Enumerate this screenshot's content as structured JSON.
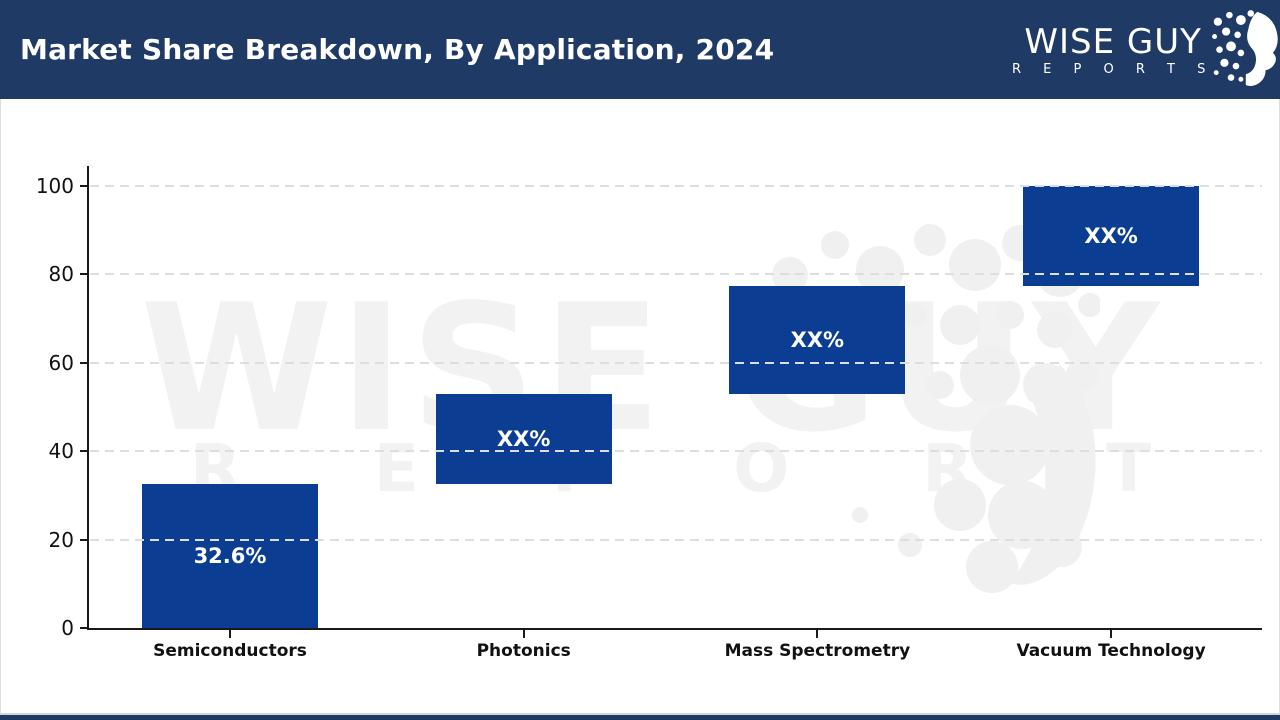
{
  "header": {
    "title": "Market Share Breakdown, By Application, 2024",
    "logo": {
      "line1": "WISE GUY",
      "line2": "R E P O R T S"
    }
  },
  "watermark": {
    "line1": "WISE GUY",
    "line2": "R E P O R T S"
  },
  "colors": {
    "header_bg": "#203a66",
    "footer_bg": "#203a66",
    "bar": "#0b3e92",
    "grid": "#dedede",
    "axis": "#1a1a1a",
    "bar_label": "#ffffff",
    "watermark": "#f2f2f2"
  },
  "chart_data": {
    "type": "bar",
    "subtype": "waterfall",
    "title": "Market Share Breakdown, By Application, 2024",
    "categories": [
      "Semiconductors",
      "Photonics",
      "Mass Spectrometry",
      "Vacuum Technology"
    ],
    "segments": [
      {
        "category": "Semiconductors",
        "start": 0,
        "end": 32.6,
        "label": "32.6%"
      },
      {
        "category": "Photonics",
        "start": 32.6,
        "end": 53.0,
        "label": "XX%"
      },
      {
        "category": "Mass Spectrometry",
        "start": 53.0,
        "end": 77.3,
        "label": "XX%"
      },
      {
        "category": "Vacuum Technology",
        "start": 77.3,
        "end": 100,
        "label": "XX%"
      }
    ],
    "yticks": [
      0,
      20,
      40,
      60,
      80,
      100
    ],
    "ylim": [
      0,
      105
    ],
    "xlabel": "",
    "ylabel": "",
    "grid": "dashed-horizontal",
    "legend": null
  }
}
